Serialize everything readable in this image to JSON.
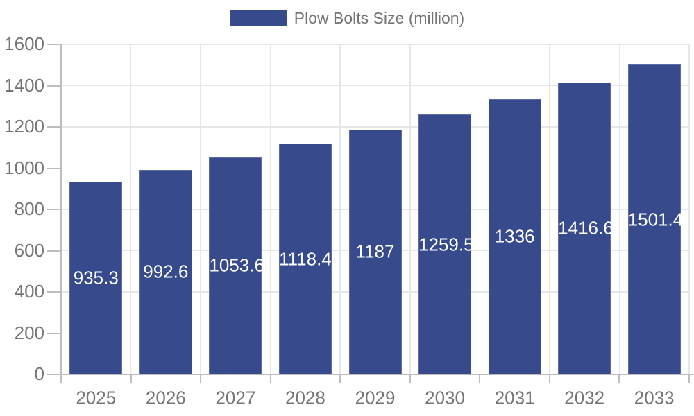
{
  "chart_data": {
    "type": "bar",
    "series_name": "Plow Bolts Size (million)",
    "categories": [
      "2025",
      "2026",
      "2027",
      "2028",
      "2029",
      "2030",
      "2031",
      "2032",
      "2033"
    ],
    "values": [
      935.3,
      992.6,
      1053.6,
      1118.4,
      1187,
      1259.5,
      1336,
      1416.6,
      1501.4
    ],
    "value_labels": [
      "935.3",
      "992.6",
      "1053.6",
      "1118.4",
      "1187",
      "1259.5",
      "1336",
      "1416.6",
      "1501.4"
    ],
    "ylim": [
      0,
      1600
    ],
    "ytick_step": 200,
    "ytick_labels": [
      "0",
      "200",
      "400",
      "600",
      "800",
      "1000",
      "1200",
      "1400",
      "1600"
    ],
    "grid": true,
    "legend_position": "top-center",
    "colors": {
      "bar": "#364A8C",
      "bar_edge": "#5C6BA4",
      "value_label": "#FFFFFF",
      "axis_text": "#757575",
      "axis_line": "#BDBDBD",
      "gridline": "#E7E7E7",
      "background": "#FFFFFF"
    }
  }
}
